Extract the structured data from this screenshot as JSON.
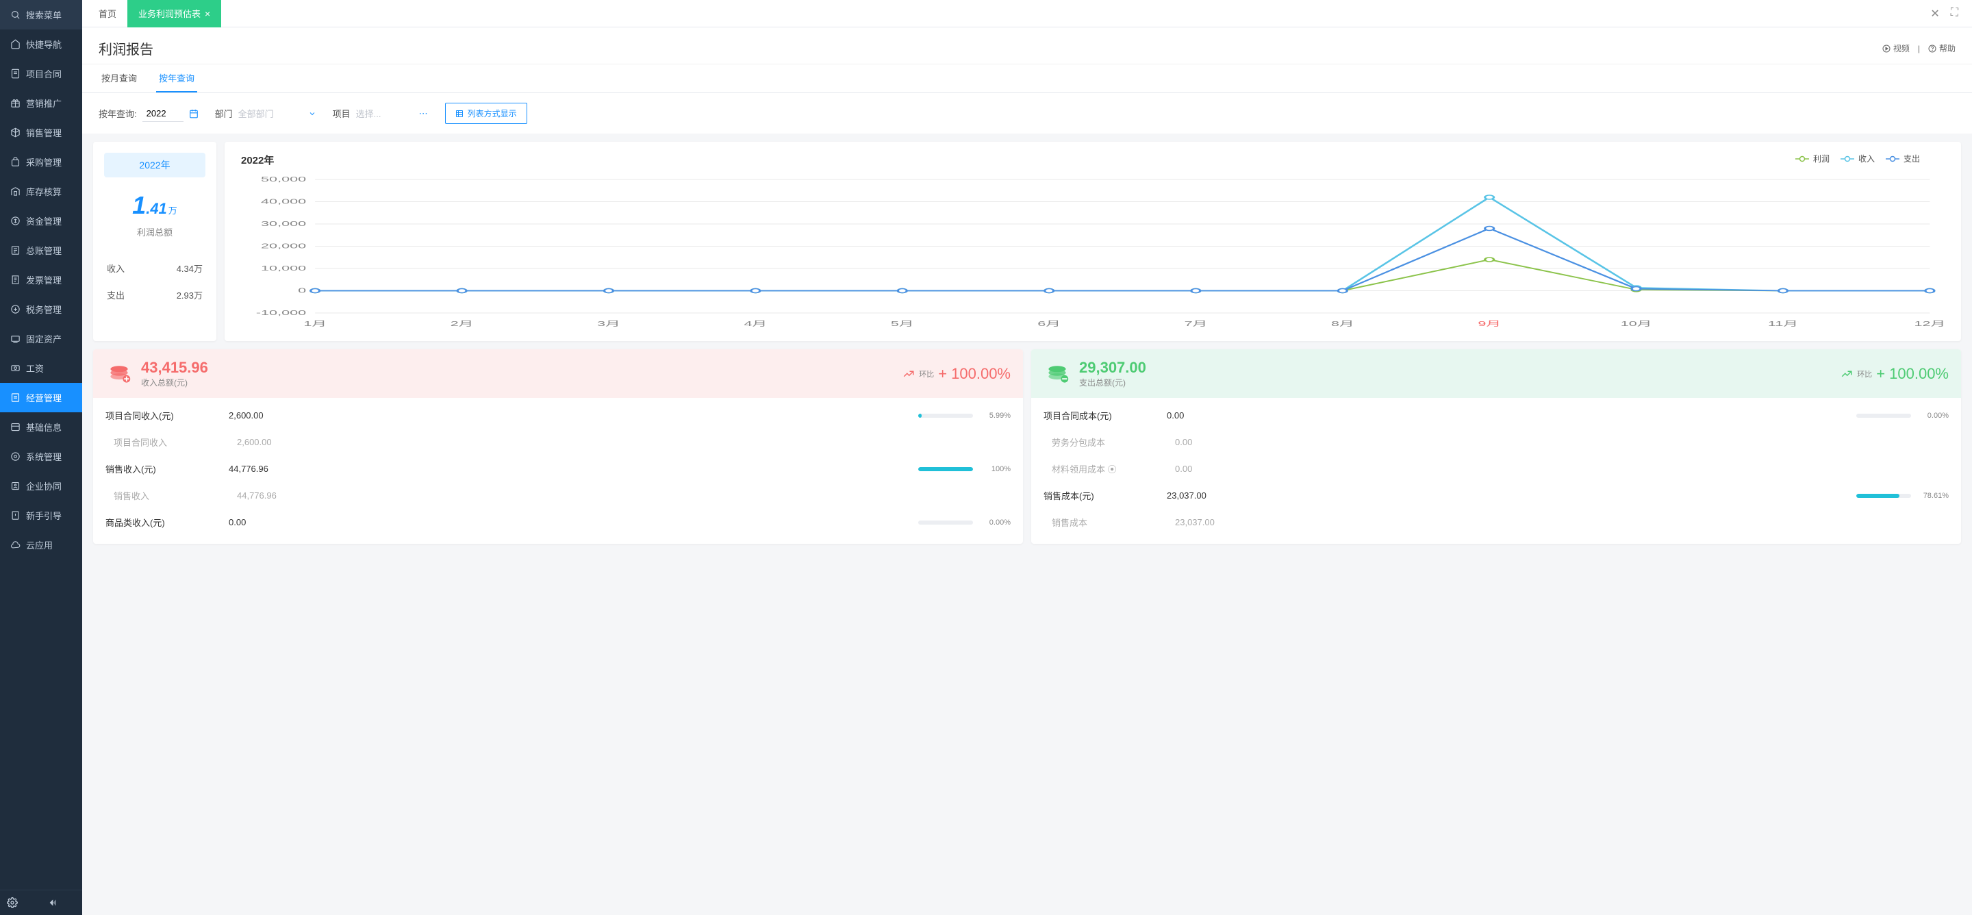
{
  "sidebar": {
    "items": [
      {
        "icon": "search",
        "label": "搜索菜单"
      },
      {
        "icon": "home",
        "label": "快捷导航"
      },
      {
        "icon": "contract",
        "label": "项目合同"
      },
      {
        "icon": "gift",
        "label": "营销推广"
      },
      {
        "icon": "cart",
        "label": "销售管理"
      },
      {
        "icon": "bag",
        "label": "采购管理"
      },
      {
        "icon": "warehouse",
        "label": "库存核算"
      },
      {
        "icon": "money",
        "label": "资金管理"
      },
      {
        "icon": "ledger",
        "label": "总账管理"
      },
      {
        "icon": "invoice",
        "label": "发票管理"
      },
      {
        "icon": "tax",
        "label": "税务管理"
      },
      {
        "icon": "asset",
        "label": "固定资产"
      },
      {
        "icon": "salary",
        "label": "工资"
      },
      {
        "icon": "manage",
        "label": "经营管理",
        "active": true
      },
      {
        "icon": "info",
        "label": "基础信息"
      },
      {
        "icon": "system",
        "label": "系统管理"
      },
      {
        "icon": "collab",
        "label": "企业协同"
      },
      {
        "icon": "guide",
        "label": "新手引导"
      },
      {
        "icon": "cloud",
        "label": "云应用"
      }
    ]
  },
  "tabs": {
    "home": "首页",
    "active": "业务利润预估表"
  },
  "page": {
    "title": "利润报告",
    "video": "视频",
    "help": "帮助"
  },
  "query": {
    "by_month": "按月查询",
    "by_year": "按年查询",
    "year_label": "按年查询:",
    "year_value": "2022",
    "dept_label": "部门",
    "dept_placeholder": "全部部门",
    "project_label": "项目",
    "project_placeholder": "选择...",
    "list_button": "列表方式显示"
  },
  "year_card": {
    "badge": "2022年",
    "big_int": "1",
    "big_dec": ".41",
    "unit": "万",
    "label": "利润总额",
    "income_label": "收入",
    "income_value": "4.34万",
    "expense_label": "支出",
    "expense_value": "2.93万"
  },
  "chart": {
    "title": "2022年",
    "type": "line",
    "xlabels": [
      "1月",
      "2月",
      "3月",
      "4月",
      "5月",
      "6月",
      "7月",
      "8月",
      "9月",
      "10月",
      "11月",
      "12月"
    ],
    "highlight_x_index": 8,
    "highlight_color": "#f56c6c",
    "ylim": [
      -10000,
      50000
    ],
    "yticks": [
      -10000,
      0,
      10000,
      20000,
      30000,
      40000,
      50000
    ],
    "ytick_labels": [
      "-10,000",
      "0",
      "10,000",
      "20,000",
      "30,000",
      "40,000",
      "50,000"
    ],
    "grid_color": "#e8e8e8",
    "axis_color": "#ccc",
    "background_color": "#ffffff",
    "series": [
      {
        "name": "利润",
        "color": "#8bc34a",
        "marker": "circle-open",
        "values": [
          0,
          0,
          0,
          0,
          0,
          0,
          0,
          0,
          14000,
          500,
          0,
          0
        ]
      },
      {
        "name": "收入",
        "color": "#59c4e6",
        "marker": "circle-open",
        "values": [
          0,
          0,
          0,
          0,
          0,
          0,
          0,
          0,
          42000,
          1400,
          0,
          0
        ]
      },
      {
        "name": "支出",
        "color": "#4a90e2",
        "marker": "circle-open",
        "values": [
          0,
          0,
          0,
          0,
          0,
          0,
          0,
          0,
          28000,
          900,
          0,
          0
        ]
      }
    ]
  },
  "income_card": {
    "total": "43,415.96",
    "sub": "收入总额(元)",
    "ratio_label": "环比",
    "ratio_value": "+ 100.00%",
    "accent_color": "#f56c6c",
    "rows": [
      {
        "label": "项目合同收入(元)",
        "value": "2,600.00",
        "pct": 5.99,
        "pct_label": "5.99%"
      },
      {
        "label": "项目合同收入",
        "value": "2,600.00",
        "sub": true
      },
      {
        "label": "销售收入(元)",
        "value": "44,776.96",
        "pct": 100,
        "pct_label": "100%"
      },
      {
        "label": "销售收入",
        "value": "44,776.96",
        "sub": true
      },
      {
        "label": "商品类收入(元)",
        "value": "0.00",
        "pct": 0,
        "pct_label": "0.00%"
      }
    ]
  },
  "expense_card": {
    "total": "29,307.00",
    "sub": "支出总额(元)",
    "ratio_label": "环比",
    "ratio_value": "+ 100.00%",
    "accent_color": "#4ecb73",
    "rows": [
      {
        "label": "项目合同成本(元)",
        "value": "0.00",
        "pct": 0,
        "pct_label": "0.00%"
      },
      {
        "label": "劳务分包成本",
        "value": "0.00",
        "sub": true
      },
      {
        "label": "材料领用成本 ⦿",
        "value": "0.00",
        "sub": true
      },
      {
        "label": "销售成本(元)",
        "value": "23,037.00",
        "pct": 78.61,
        "pct_label": "78.61%"
      },
      {
        "label": "销售成本",
        "value": "23,037.00",
        "sub": true
      }
    ]
  },
  "colors": {
    "bar_fill": "#20c0d8",
    "bar_track": "#eceef2"
  }
}
